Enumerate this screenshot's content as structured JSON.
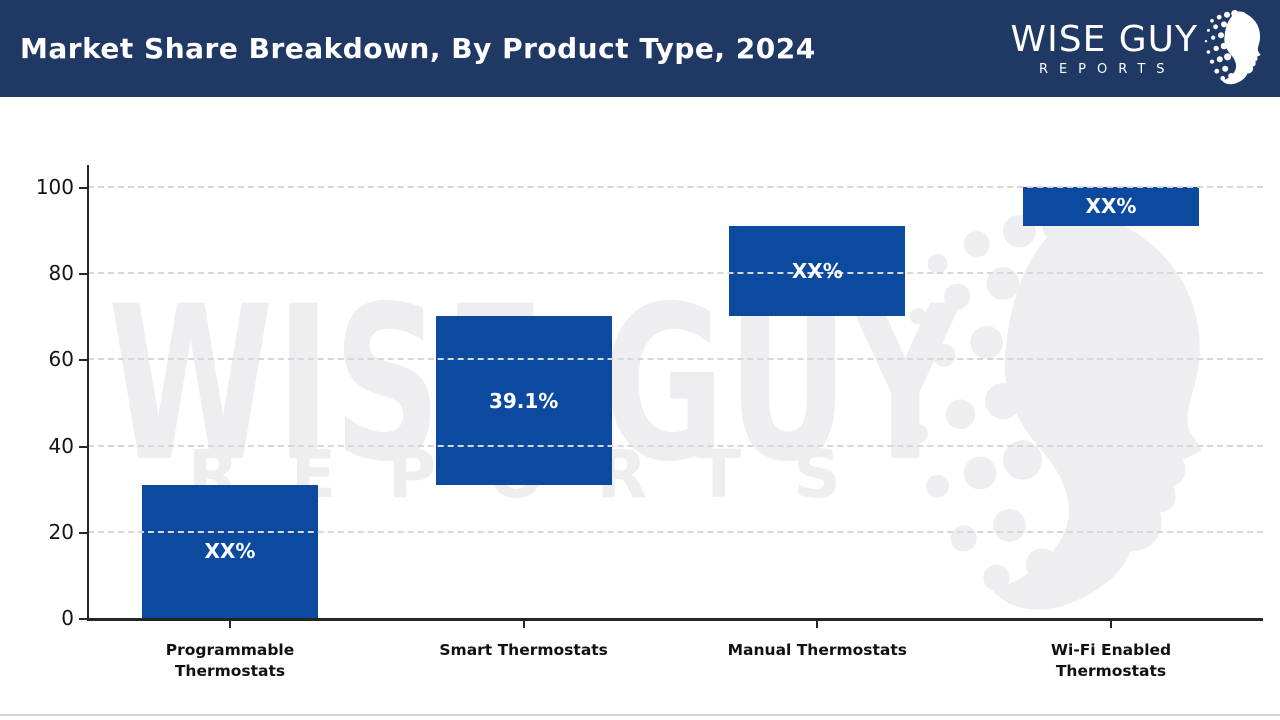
{
  "header": {
    "title": "Market Share Breakdown, By Product Type, 2024",
    "logo": {
      "line1": "WISE GUY",
      "line2": "REPORTS",
      "icon": "dotted-face-profile-icon"
    }
  },
  "watermark": {
    "line1": "WISE GUY",
    "line2": "REPORTS",
    "icon": "dotted-face-profile-icon"
  },
  "colors": {
    "header_bg": "#1f3864",
    "bar": "#0b4a9e",
    "grid": "#d7d7d7",
    "axis": "#262626",
    "watermark": "#eeeef0"
  },
  "chart_data": {
    "type": "bar",
    "subtype": "floating-segment-waterfall",
    "title": "Market Share Breakdown, By Product Type, 2024",
    "categories": [
      "Programmable\nThermostats",
      "Smart Thermostats",
      "Manual Thermostats",
      "Wi-Fi Enabled\nThermostats"
    ],
    "segments": [
      {
        "category": "Programmable Thermostats",
        "start": 0,
        "end": 30.9,
        "value": 30.9,
        "value_label": "XX%"
      },
      {
        "category": "Smart Thermostats",
        "start": 30.9,
        "end": 70,
        "value": 39.1,
        "value_label": "39.1%"
      },
      {
        "category": "Manual Thermostats",
        "start": 70,
        "end": 91,
        "value": 21,
        "value_label": "XX%"
      },
      {
        "category": "Wi-Fi Enabled Thermostats",
        "start": 91,
        "end": 100,
        "value": 9,
        "value_label": "XX%"
      }
    ],
    "ylim": [
      0,
      100
    ],
    "yticks": [
      0,
      20,
      40,
      60,
      80,
      100
    ],
    "xlabel": "",
    "ylabel": "",
    "grid": "horizontal-dashed",
    "legend": "none",
    "bar_color": "#0b4a9e"
  }
}
